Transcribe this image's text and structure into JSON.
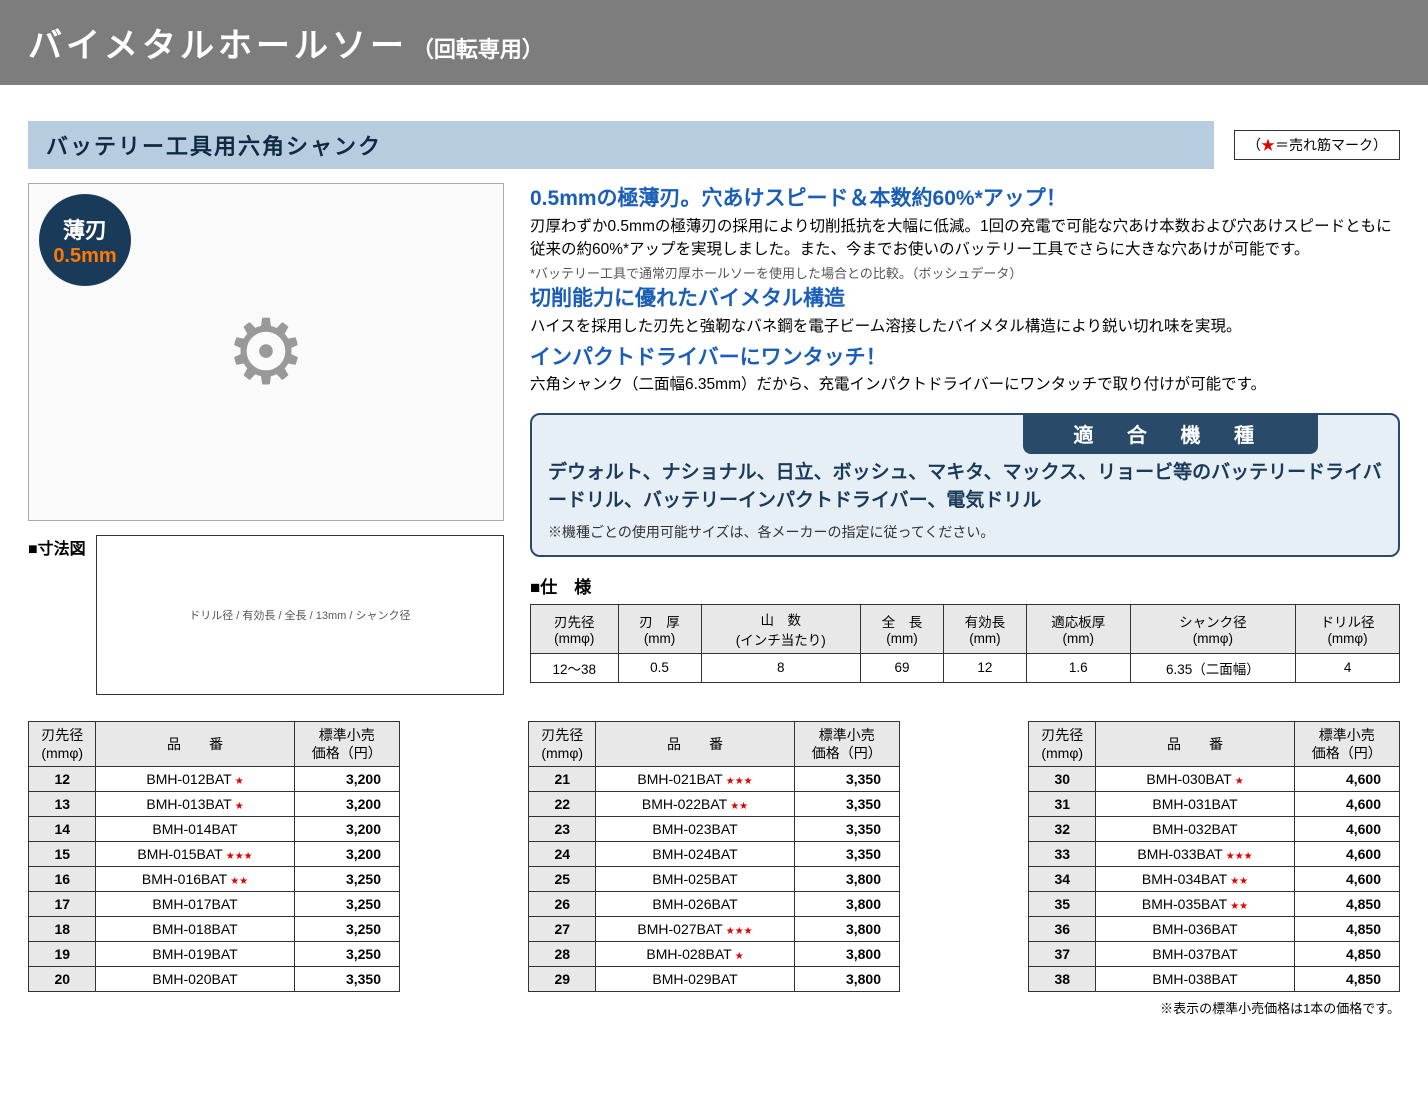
{
  "header": {
    "title": "バイメタルホールソー",
    "sub": "（回転専用）"
  },
  "section": {
    "title": "バッテリー工具用六角シャンク",
    "star_note_prefix": "（",
    "star_note_star": "★",
    "star_note_suffix": "＝売れ筋マーク）"
  },
  "badge": {
    "line1": "薄刃",
    "line2": "0.5mm"
  },
  "dim_label": "■寸法図",
  "dim_diagram_text": "ドリル径 / 有効長 / 全長 / 13mm / シャンク径",
  "features": [
    {
      "heading": "0.5mmの極薄刃。穴あけスピード＆本数約60%*アップ！",
      "body": "刃厚わずか0.5mmの極薄刃の採用により切削抵抗を大幅に低減。1回の充電で可能な穴あけ本数および穴あけスピードともに従来の約60%*アップを実現しました。また、今までお使いのバッテリー工具でさらに大きな穴あけが可能です。",
      "note": "*バッテリー工具で通常刃厚ホールソーを使用した場合との比較。（ボッシュデータ）"
    },
    {
      "heading": "切削能力に優れたバイメタル構造",
      "body": "ハイスを採用した刃先と強靭なバネ鋼を電子ビーム溶接したバイメタル構造により鋭い切れ味を実現。"
    },
    {
      "heading": "インパクトドライバーにワンタッチ！",
      "body": "六角シャンク（二面幅6.35mm）だから、充電インパクトドライバーにワンタッチで取り付けが可能です。"
    }
  ],
  "compat": {
    "title": "適 合 機 種",
    "body": "デウォルト、ナショナル、日立、ボッシュ、マキタ、マックス、リョービ等のバッテリードライバードリル、バッテリーインパクトドライバー、電気ドリル",
    "note": "※機種ごとの使用可能サイズは、各メーカーの指定に従ってください。"
  },
  "spec": {
    "label": "■仕　様",
    "headers": [
      "刃先径\n(mmφ)",
      "刃　厚\n(mm)",
      "山　数\n(インチ当たり)",
      "全　長\n(mm)",
      "有効長\n(mm)",
      "適応板厚\n(mm)",
      "シャンク径\n(mmφ)",
      "ドリル径\n(mmφ)"
    ],
    "row": [
      "12〜38",
      "0.5",
      "8",
      "69",
      "12",
      "1.6",
      "6.35（二面幅）",
      "4"
    ]
  },
  "ptable_headers": {
    "dia": "刃先径\n(mmφ)",
    "code": "品　　番",
    "price": "標準小売\n価格（円）"
  },
  "tables": [
    [
      {
        "d": "12",
        "c": "BMH-012BAT",
        "s": 1,
        "p": "3,200"
      },
      {
        "d": "13",
        "c": "BMH-013BAT",
        "s": 1,
        "p": "3,200"
      },
      {
        "d": "14",
        "c": "BMH-014BAT",
        "s": 0,
        "p": "3,200"
      },
      {
        "d": "15",
        "c": "BMH-015BAT",
        "s": 3,
        "p": "3,200"
      },
      {
        "d": "16",
        "c": "BMH-016BAT",
        "s": 2,
        "p": "3,250"
      },
      {
        "d": "17",
        "c": "BMH-017BAT",
        "s": 0,
        "p": "3,250"
      },
      {
        "d": "18",
        "c": "BMH-018BAT",
        "s": 0,
        "p": "3,250"
      },
      {
        "d": "19",
        "c": "BMH-019BAT",
        "s": 0,
        "p": "3,250"
      },
      {
        "d": "20",
        "c": "BMH-020BAT",
        "s": 0,
        "p": "3,350"
      }
    ],
    [
      {
        "d": "21",
        "c": "BMH-021BAT",
        "s": 3,
        "p": "3,350"
      },
      {
        "d": "22",
        "c": "BMH-022BAT",
        "s": 2,
        "p": "3,350"
      },
      {
        "d": "23",
        "c": "BMH-023BAT",
        "s": 0,
        "p": "3,350"
      },
      {
        "d": "24",
        "c": "BMH-024BAT",
        "s": 0,
        "p": "3,350"
      },
      {
        "d": "25",
        "c": "BMH-025BAT",
        "s": 0,
        "p": "3,800"
      },
      {
        "d": "26",
        "c": "BMH-026BAT",
        "s": 0,
        "p": "3,800"
      },
      {
        "d": "27",
        "c": "BMH-027BAT",
        "s": 3,
        "p": "3,800"
      },
      {
        "d": "28",
        "c": "BMH-028BAT",
        "s": 1,
        "p": "3,800"
      },
      {
        "d": "29",
        "c": "BMH-029BAT",
        "s": 0,
        "p": "3,800"
      }
    ],
    [
      {
        "d": "30",
        "c": "BMH-030BAT",
        "s": 1,
        "p": "4,600"
      },
      {
        "d": "31",
        "c": "BMH-031BAT",
        "s": 0,
        "p": "4,600"
      },
      {
        "d": "32",
        "c": "BMH-032BAT",
        "s": 0,
        "p": "4,600"
      },
      {
        "d": "33",
        "c": "BMH-033BAT",
        "s": 3,
        "p": "4,600"
      },
      {
        "d": "34",
        "c": "BMH-034BAT",
        "s": 2,
        "p": "4,600"
      },
      {
        "d": "35",
        "c": "BMH-035BAT",
        "s": 2,
        "p": "4,850"
      },
      {
        "d": "36",
        "c": "BMH-036BAT",
        "s": 0,
        "p": "4,850"
      },
      {
        "d": "37",
        "c": "BMH-037BAT",
        "s": 0,
        "p": "4,850"
      },
      {
        "d": "38",
        "c": "BMH-038BAT",
        "s": 0,
        "p": "4,850"
      }
    ]
  ],
  "footnote": "※表示の標準小売価格は1本の価格です。",
  "colors": {
    "header_bg": "#7d7d7d",
    "section_bg": "#b8cce0",
    "feature_h": "#1a5eb8",
    "compat_border": "#2a4a6a",
    "compat_bg": "#e6eef6",
    "star": "#e00000",
    "badge_bg": "#1a3a5a",
    "badge_orange": "#ff7a00",
    "th_bg": "#e8e8e8"
  }
}
